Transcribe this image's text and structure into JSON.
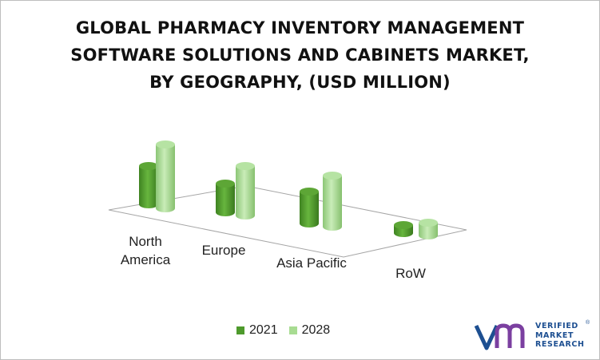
{
  "title": "GLOBAL PHARMACY INVENTORY MANAGEMENT\nSOFTWARE SOLUTIONS AND CABINETS MARKET,\nBY GEOGRAPHY, (USD MILLION)",
  "chart_data": {
    "type": "bar",
    "title": "GLOBAL PHARMACY INVENTORY MANAGEMENT SOFTWARE SOLUTIONS AND CABINETS MARKET, BY GEOGRAPHY, (USD MILLION)",
    "categories": [
      "North\nAmerica",
      "Europe",
      "Asia Pacific",
      "RoW"
    ],
    "series": [
      {
        "name": "2021",
        "values": [
          48,
          36,
          40,
          10
        ],
        "color": "#4e9a2c"
      },
      {
        "name": "2028",
        "values": [
          80,
          62,
          64,
          16
        ],
        "color": "#9fd58a"
      }
    ],
    "ylim": [
      0,
      100
    ],
    "legend_position": "bottom",
    "grid": false,
    "style": "3d-cylinder"
  },
  "brand": {
    "lines": [
      "VERIFIED",
      "MARKET",
      "RESEARCH"
    ],
    "registered": "®",
    "color": "#1d4f91",
    "accent": "#7b3fa0"
  }
}
